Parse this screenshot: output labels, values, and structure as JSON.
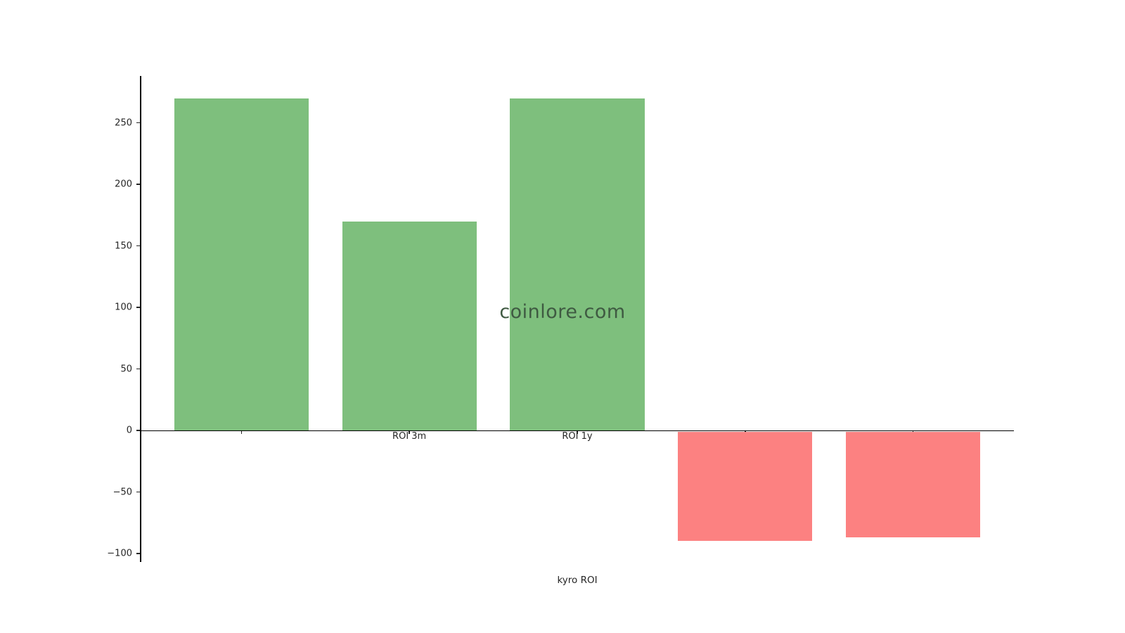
{
  "page": {
    "background": "#ffffff"
  },
  "watermark": {
    "text": "coinlore.com",
    "color": "#3f5a42"
  },
  "chart_data": {
    "type": "bar",
    "title": "",
    "xlabel": "kyro ROI",
    "ylabel": "",
    "categories": [
      "",
      "ROI 3m",
      "ROI 1y",
      "",
      ""
    ],
    "values": [
      270,
      170,
      270,
      -89,
      -86
    ],
    "series": [
      {
        "name": "kyro ROI",
        "values": [
          270,
          170,
          270,
          -89,
          -86
        ]
      }
    ],
    "positive_color": "#7ebf7d",
    "negative_color": "#fc8181",
    "bar_colors": [
      "#7ebf7d",
      "#7ebf7d",
      "#7ebf7d",
      "#fc8181",
      "#fc8181"
    ],
    "y_ticks": [
      250,
      200,
      150,
      100,
      50,
      0,
      -50,
      -100
    ],
    "y_tick_labels": [
      "250",
      "200",
      "150",
      "100",
      "50",
      "0",
      "−50",
      "−100"
    ],
    "ylim": [
      -106,
      288
    ],
    "xlim": [
      -0.6,
      4.6
    ],
    "bar_width": 0.8,
    "grid": false,
    "legend": null,
    "axis_color": "#000000",
    "tick_label_color": "#262626"
  }
}
